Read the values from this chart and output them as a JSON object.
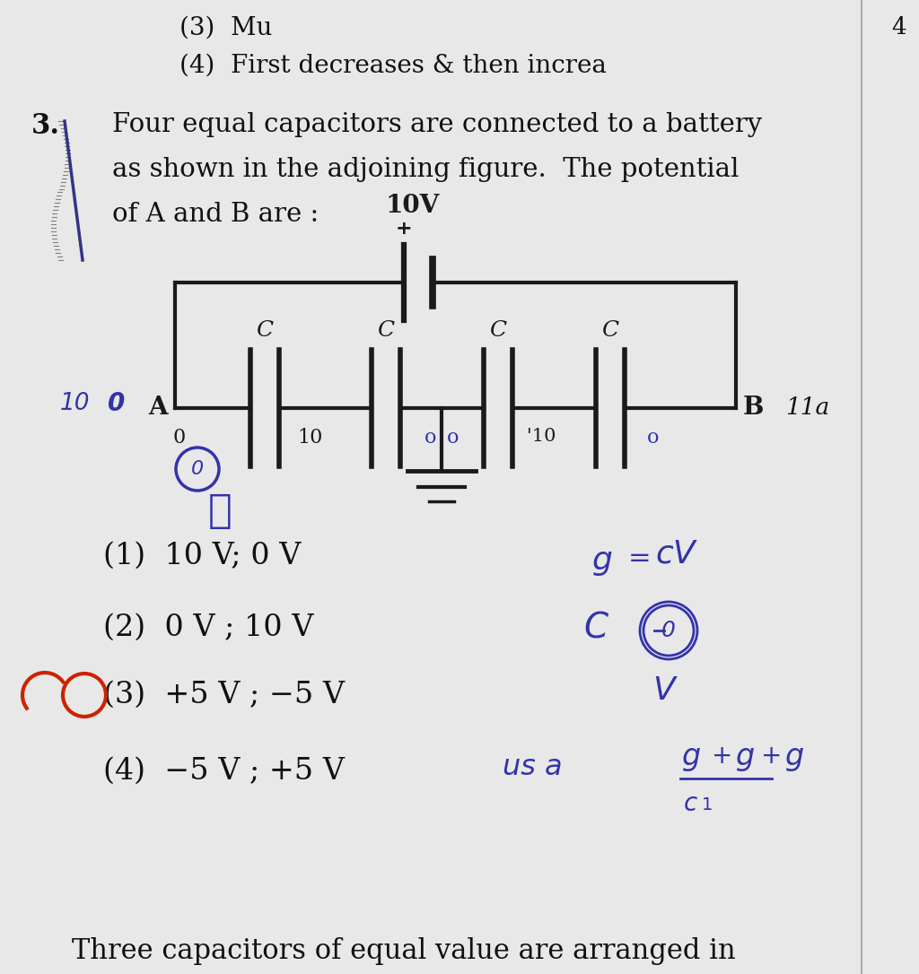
{
  "bg_color": "#d8d8d8",
  "page_color": "#e8e8e8",
  "text_color": "#111111",
  "options": [
    "(1)  10 V; 0 V",
    "(2)  0 V ; 10 V",
    "(3)  +5 V ; −5 V",
    "(4)  −5 V ; +5 V"
  ],
  "bottom_text": "Three capacitors of equal value are arranged in",
  "wire_color": "#1a1a1a",
  "purple": "#3333aa",
  "red_mark": "#cc2200"
}
